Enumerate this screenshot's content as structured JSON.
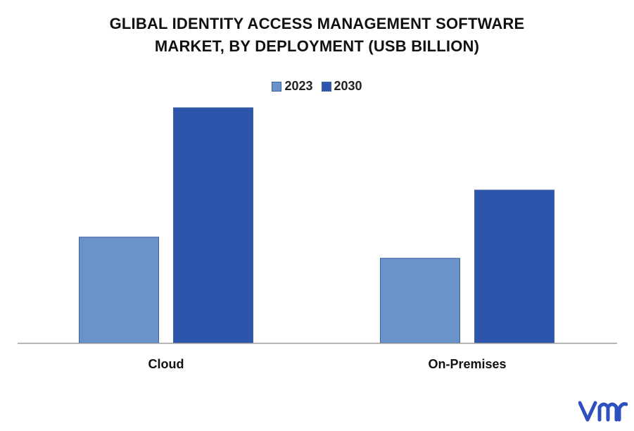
{
  "chart_data": {
    "type": "bar",
    "title_lines": [
      "GLIBAL IDENTITY ACCESS MANAGEMENT SOFTWARE",
      "MARKET, BY DEPLOYMENT (USB BILLION)"
    ],
    "categories": [
      "Cloud",
      "On-Premises"
    ],
    "series": [
      {
        "name": "2023",
        "values": [
          4.5,
          3.6
        ],
        "color": "#6a93c9"
      },
      {
        "name": "2030",
        "values": [
          10.0,
          6.5
        ],
        "color": "#2e55ac"
      }
    ],
    "ylim": [
      0,
      10
    ],
    "grid": false,
    "legend_position": "top-center",
    "xlabel": "",
    "ylabel": ""
  },
  "colors": {
    "axis": "#9a9a9a",
    "logo": "#2e4fbf"
  },
  "logo_icon": "vmr-logo"
}
